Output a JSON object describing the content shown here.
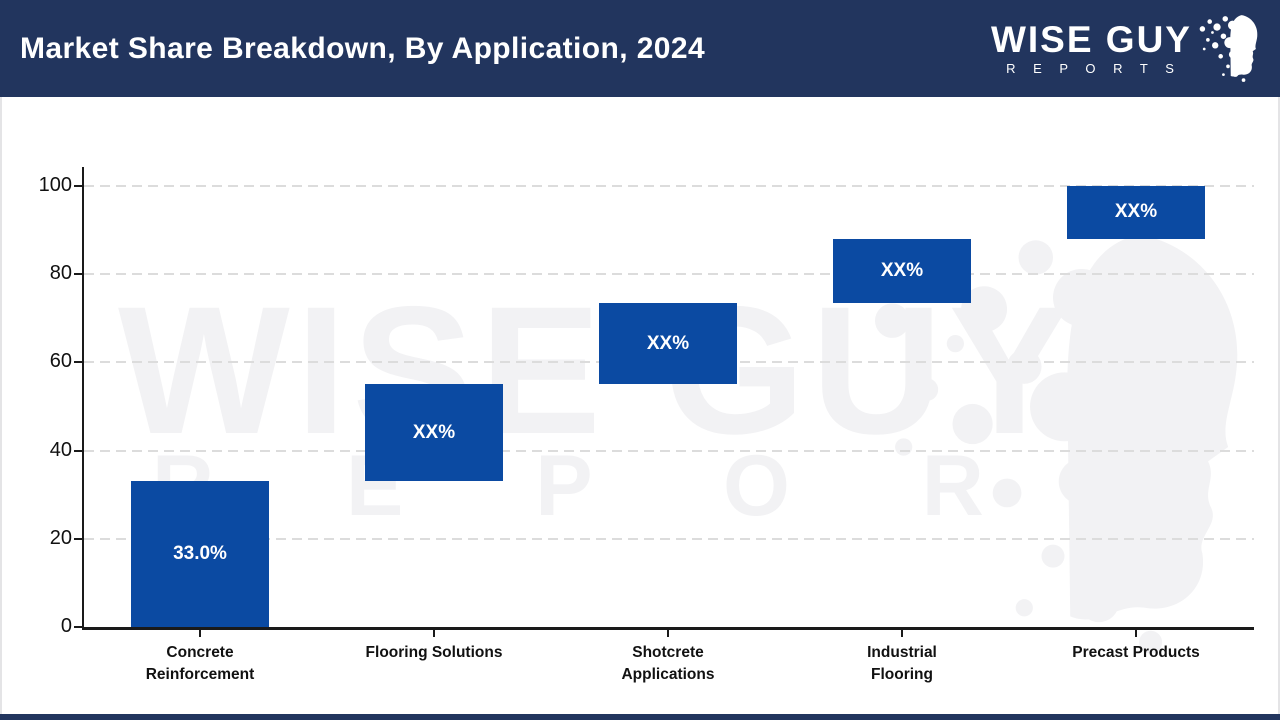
{
  "header": {
    "title": "Market Share Breakdown, By Application, 2024",
    "logo": {
      "name": "WISE GUY",
      "sub": "R E P O R T S",
      "icon": "wiseguy-face-icon"
    }
  },
  "watermark": {
    "line1": "WISE GUY",
    "line2": "R E P O R T S",
    "icon": "wiseguy-face-watermark-icon"
  },
  "chart_data": {
    "type": "bar",
    "subtype": "waterfall",
    "title": "Market Share Breakdown, By Application, 2024",
    "categories": [
      "Concrete\nReinforcement",
      "Flooring Solutions",
      "Shotcrete\nApplications",
      "Industrial\nFlooring",
      "Precast Products"
    ],
    "segments": [
      {
        "category": "Concrete Reinforcement",
        "start": 0,
        "end": 33,
        "value": 33.0,
        "label": "33.0%"
      },
      {
        "category": "Flooring Solutions",
        "start": 33,
        "end": 55,
        "value": 22.0,
        "label": "XX%"
      },
      {
        "category": "Shotcrete Applications",
        "start": 55,
        "end": 73.5,
        "value": 18.5,
        "label": "XX%"
      },
      {
        "category": "Industrial Flooring",
        "start": 73.5,
        "end": 88,
        "value": 14.5,
        "label": "XX%"
      },
      {
        "category": "Precast Products",
        "start": 88,
        "end": 100,
        "value": 12.0,
        "label": "XX%"
      }
    ],
    "xlabel": "",
    "ylabel": "",
    "ylim": [
      0,
      100
    ],
    "yticks": [
      0,
      20,
      40,
      60,
      80,
      100
    ],
    "grid": "horizontal-dashed",
    "legend": "none",
    "colors": {
      "bar": "#0B4AA2",
      "bar_label": "#FFFFFF",
      "grid": "#DCDCDC",
      "axis": "#1A1A1A",
      "header_bg": "#22355E",
      "watermark": "#F2F2F4"
    }
  }
}
